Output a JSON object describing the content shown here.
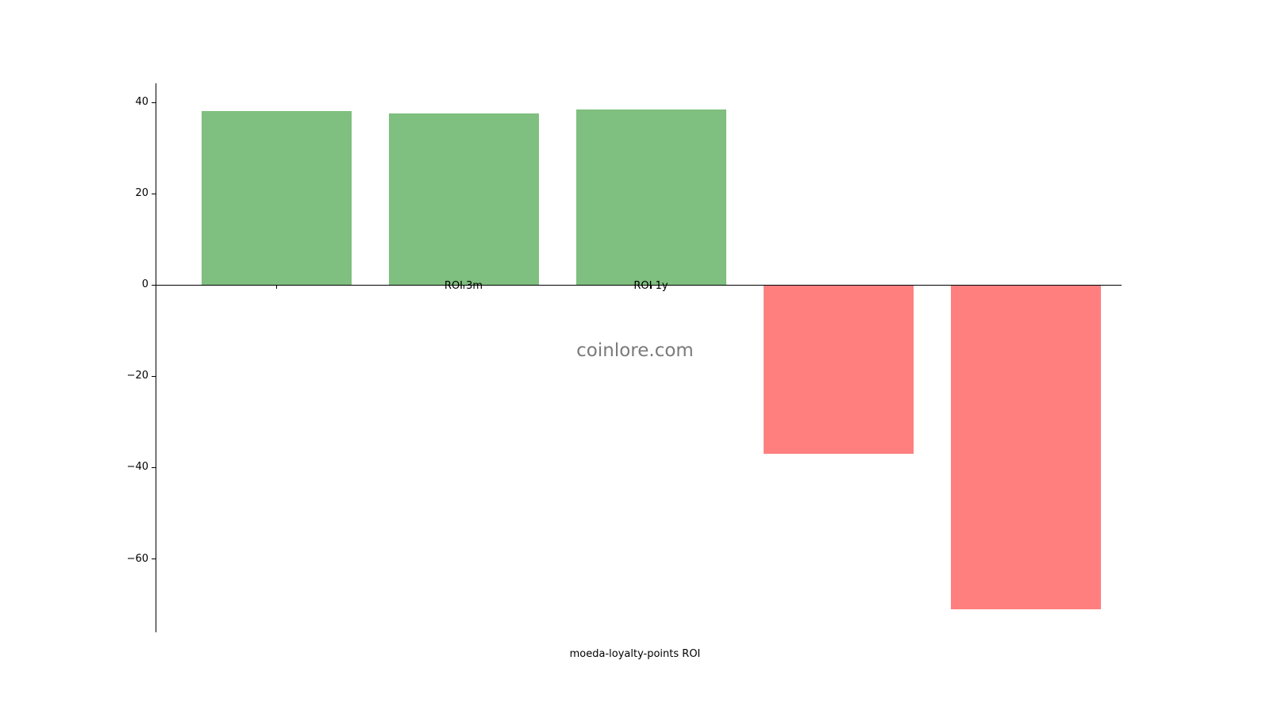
{
  "chart_data": {
    "type": "bar",
    "categories": [
      "",
      "ROI 3m",
      "ROI 1y",
      "",
      ""
    ],
    "values": [
      38.0,
      37.4,
      38.3,
      -37.0,
      -71.2
    ],
    "series_note": "green bars are positive ROI, red bars are negative ROI",
    "yticks": [
      40,
      20,
      0,
      -20,
      -40,
      -60
    ],
    "ytick_labels": [
      "40",
      "20",
      "0",
      "−20",
      "−40",
      "−60"
    ],
    "ylim": [
      -76.2,
      44.1
    ],
    "grid": false,
    "legend": null,
    "title": "moeda-loyalty-points ROI",
    "xlabel": "",
    "ylabel": "",
    "colors": {
      "positive_bar": "#7fbf7f",
      "negative_bar": "#ff7f7f",
      "axis": "#000000",
      "tick_text": "#000000",
      "watermark_text": "#7a7a7a"
    }
  },
  "watermark": "coinlore.com",
  "footer_title": "moeda-loyalty-points ROI"
}
